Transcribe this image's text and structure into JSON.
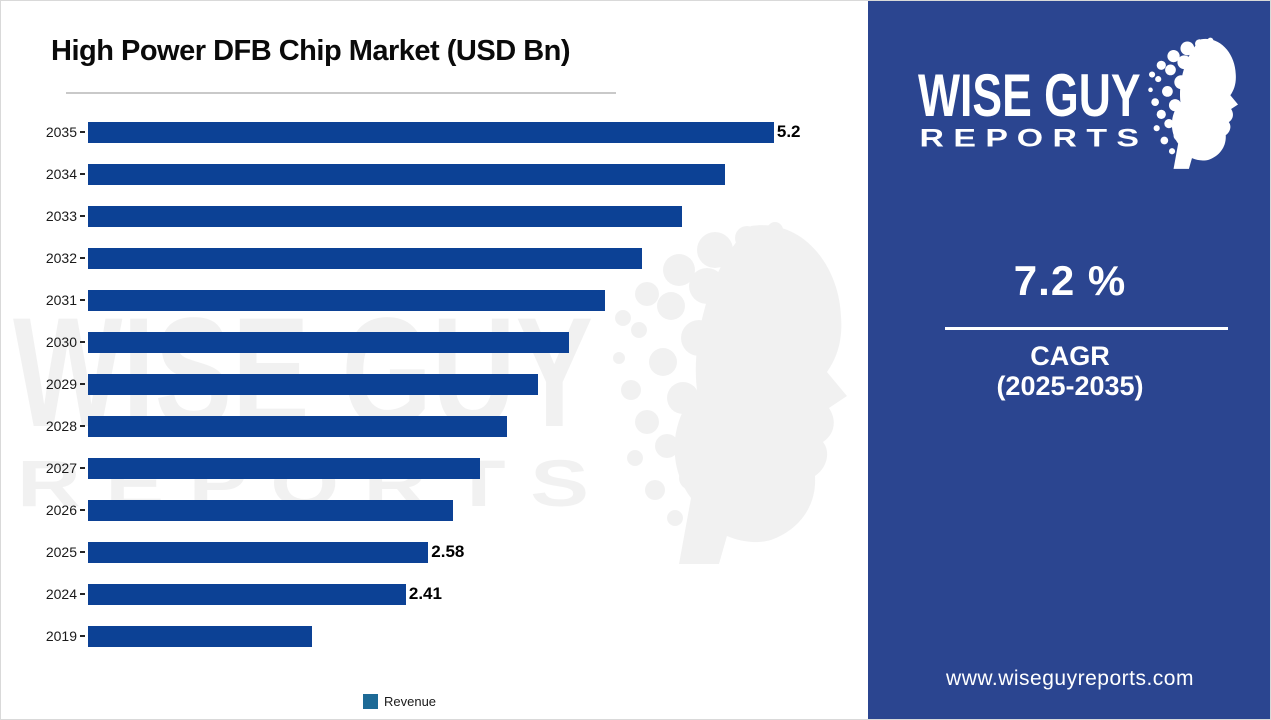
{
  "title": "High Power DFB Chip Market (USD Bn)",
  "chart_data": {
    "type": "bar",
    "orientation": "horizontal",
    "title": "High Power DFB Chip Market (USD Bn)",
    "unit": "USD Bn",
    "categories": [
      "2035",
      "2034",
      "2033",
      "2032",
      "2031",
      "2030",
      "2029",
      "2028",
      "2027",
      "2026",
      "2025",
      "2024",
      "2019"
    ],
    "values": [
      5.2,
      4.83,
      4.5,
      4.2,
      3.92,
      3.65,
      3.41,
      3.18,
      2.97,
      2.77,
      2.58,
      2.41,
      1.7
    ],
    "value_labels": {
      "2035": "5.2",
      "2025": "2.58",
      "2024": "2.41"
    },
    "xlim": [
      0,
      5.9
    ],
    "grid": false,
    "bar_color": "#0c4195",
    "legend": [
      {
        "label": "Revenue",
        "color": "#1d6a96"
      }
    ],
    "legend_position": "bottom-center"
  },
  "brand_panel": {
    "background_color": "#2b4590",
    "logo_line1": "WISE GUY",
    "logo_line2": "R E P O R T S",
    "cagr_value": "7.2 %",
    "cagr_label": "CAGR",
    "cagr_range": "(2025-2035)",
    "website": "www.wiseguyreports.com"
  },
  "watermark": {
    "logo_line1": "WISE GUY",
    "logo_line2": "R E P O R T S"
  }
}
